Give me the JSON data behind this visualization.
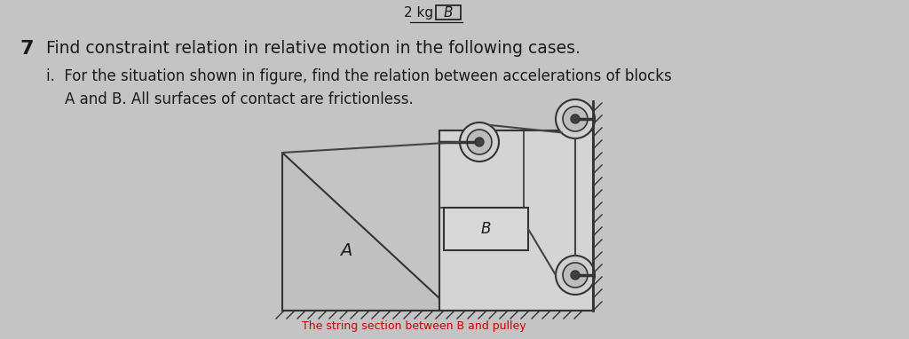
{
  "bg_color": "#c4c4c4",
  "text_color": "#1a1a1a",
  "title_number": "7",
  "title_text": "Find constraint relation in relative motion in the following cases.",
  "sub_i": "i.  For the situation shown in figure, find the relation between accelerations of blocks",
  "sub_ii": "    A and B. All surfaces of contact are frictionless.",
  "top_label": "2 kg",
  "top_box_label": "B",
  "bottom_text": "The string section between B and pulley",
  "wedge_face": "#c0c0c0",
  "block_face": "#d8d8d8",
  "pulley_outer": "#c8c8c8",
  "pulley_mid": "#a0a0a0",
  "pulley_inner": "#404040",
  "line_color": "#333333",
  "string_color": "#444444"
}
